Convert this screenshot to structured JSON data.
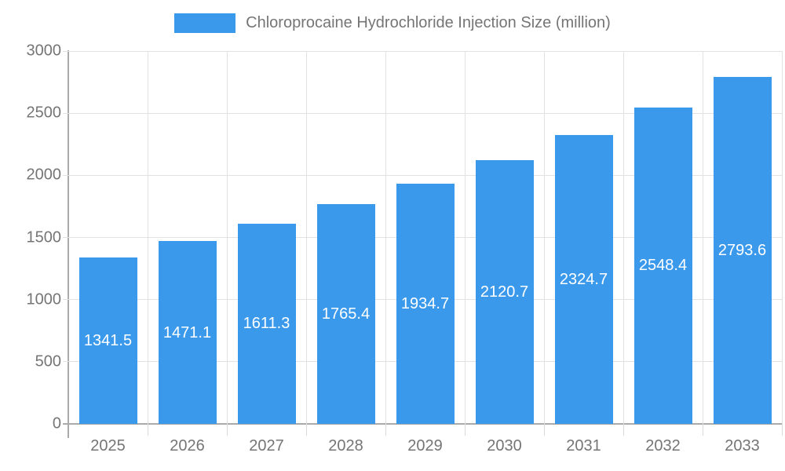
{
  "chart_data": {
    "type": "bar",
    "title": "Chloroprocaine Hydrochloride Injection Size (million)",
    "categories": [
      "2025",
      "2026",
      "2027",
      "2028",
      "2029",
      "2030",
      "2031",
      "2032",
      "2033"
    ],
    "values": [
      1341.5,
      1471.1,
      1611.3,
      1765.4,
      1934.7,
      2120.7,
      2324.7,
      2548.4,
      2793.6
    ],
    "xlabel": "",
    "ylabel": "",
    "ylim": [
      0,
      3000
    ],
    "yticks": [
      0,
      500,
      1000,
      1500,
      2000,
      2500,
      3000
    ],
    "grid": true,
    "legend_position": "top-center",
    "colors": {
      "bar": "#3B99EC",
      "value_label": "#FFFFFF",
      "axis": "#AAAAAA",
      "gridline": "#E2E2E2",
      "tick": "#D9D9D9",
      "tick_label": "#757575"
    }
  }
}
